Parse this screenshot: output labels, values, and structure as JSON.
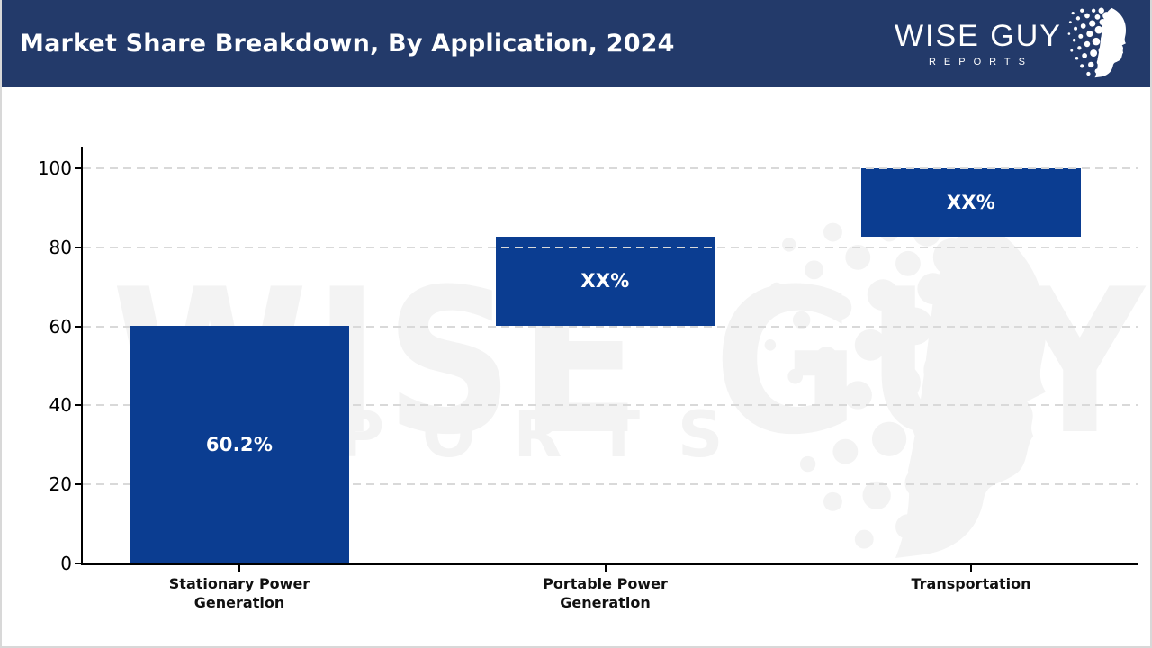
{
  "header": {
    "title": "Market Share Breakdown, By Application, 2024",
    "logo": {
      "brand": "WISE GUY",
      "sub": "REPORTS"
    }
  },
  "watermark": {
    "line1": "WISE GUY",
    "line2": "REPORTS"
  },
  "colors": {
    "header_bg": "#233a6a",
    "bar_blue": "#0b3d91",
    "bar_label": "#ffffff",
    "gridline": "#d9d9d9",
    "axis": "#000000",
    "watermark": "#f3f3f3",
    "page_border": "#d8d8d8"
  },
  "chart_data": {
    "type": "bar",
    "subtype": "waterfall-stacked-breakdown",
    "title": "Market Share Breakdown, By Application, 2024",
    "xlabel": "",
    "ylabel": "",
    "yticks": [
      0,
      20,
      40,
      60,
      80,
      100
    ],
    "ylim": [
      0,
      105
    ],
    "grid": "horizontal-dashed",
    "legend": "none",
    "bar_color": "#0b3d91",
    "label_color": "#ffffff",
    "categories": [
      "Stationary Power Generation",
      "Portable Power Generation",
      "Transportation"
    ],
    "segments": [
      {
        "category": "Stationary Power Generation",
        "lines": [
          "Stationary Power",
          "Generation"
        ],
        "start": 0,
        "end": 60.2,
        "value": 60.2,
        "label": "60.2%"
      },
      {
        "category": "Portable Power Generation",
        "lines": [
          "Portable Power",
          "Generation"
        ],
        "start": 60.2,
        "end": 82.8,
        "value": 22.6,
        "label": "XX%"
      },
      {
        "category": "Transportation",
        "lines": [
          "Transportation"
        ],
        "start": 82.8,
        "end": 100,
        "value": 17.2,
        "label": "XX%"
      }
    ]
  }
}
